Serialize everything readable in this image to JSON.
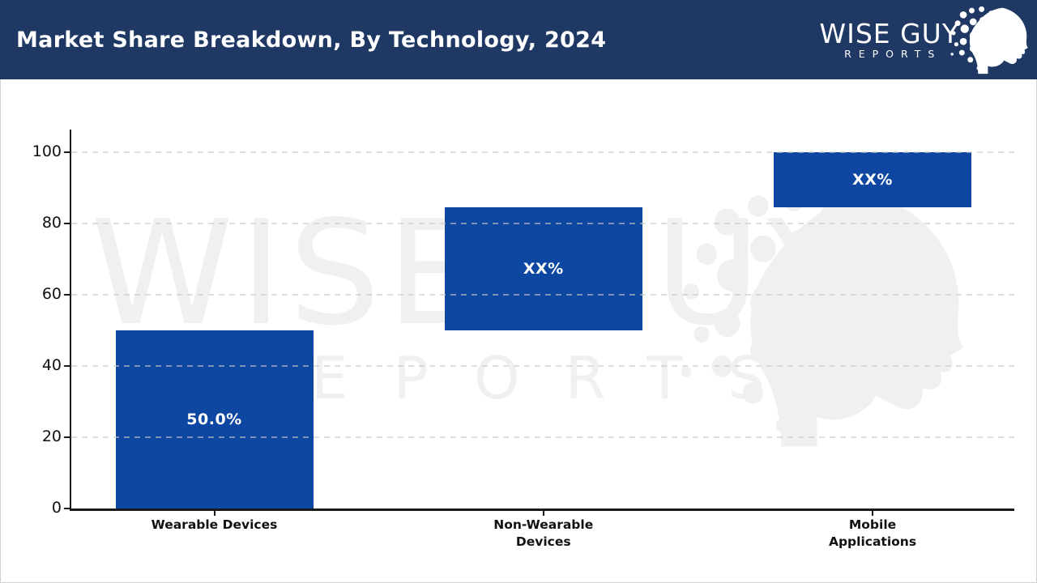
{
  "header": {
    "title": "Market Share Breakdown, By Technology, 2024",
    "bg_color": "#1f3864",
    "text_color": "#ffffff"
  },
  "logo": {
    "line1": "WISE GUY",
    "line2": "REPORTS"
  },
  "watermark": {
    "line1": "WISE GUY",
    "line2": "REPORTS"
  },
  "chart_data": {
    "type": "bar",
    "subtype": "waterfall",
    "title": "Market Share Breakdown, By Technology, 2024",
    "categories": [
      "Wearable Devices",
      "Non-Wearable\nDevices",
      "Mobile\nApplications"
    ],
    "bars": [
      {
        "category": "Wearable Devices",
        "start": 0,
        "end": 50,
        "label": "50.0%"
      },
      {
        "category": "Non-Wearable Devices",
        "start": 50,
        "end": 84.5,
        "label": "XX%"
      },
      {
        "category": "Mobile Applications",
        "start": 84.5,
        "end": 100,
        "label": "XX%"
      }
    ],
    "xlabel": "",
    "ylabel": "",
    "ylim": [
      0,
      100
    ],
    "yticks": [
      0,
      20,
      40,
      60,
      80,
      100
    ],
    "grid": "horizontal dashed, drawn over bars",
    "legend": "none",
    "bar_color": "#0d47a1",
    "bar_label_color": "#ffffff",
    "axis_color": "#1a1a1a",
    "grid_color": "#d3d3d3"
  }
}
